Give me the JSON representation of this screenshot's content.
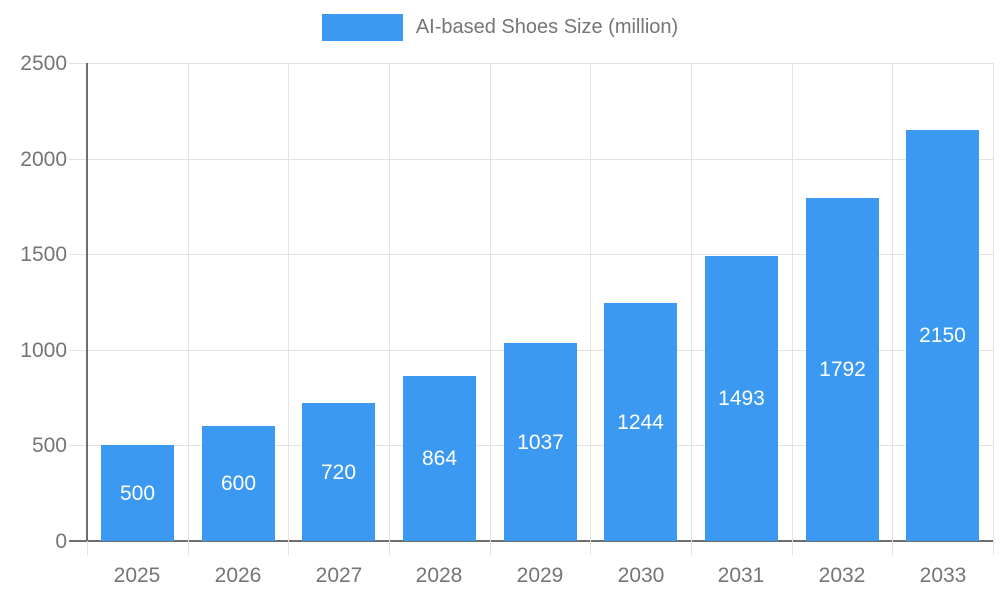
{
  "legend": {
    "label": "AI-based Shoes Size (million)"
  },
  "chart_data": {
    "type": "bar",
    "title": "AI-based Shoes Size (million)",
    "series_name": "AI-based Shoes Size (million)",
    "categories": [
      "2025",
      "2026",
      "2027",
      "2028",
      "2029",
      "2030",
      "2031",
      "2032",
      "2033"
    ],
    "values": [
      500,
      600,
      720,
      864,
      1037,
      1244,
      1493,
      1792,
      2150
    ],
    "value_labels": [
      "500",
      "600",
      "720",
      "864",
      "1037",
      "1244",
      "1493",
      "1792",
      "2150"
    ],
    "xlabel": "",
    "ylabel": "",
    "ylim": [
      0,
      2500
    ],
    "y_ticks": [
      0,
      500,
      1000,
      1500,
      2000,
      2500
    ],
    "y_tick_labels": [
      "0",
      "500",
      "1000",
      "1500",
      "2000",
      "2500"
    ],
    "grid": "on",
    "legend_position": "top-center"
  },
  "colors": {
    "bar": "#3b99f1",
    "grid": "#e3e3e3",
    "axis": "#6e6e6e",
    "tick_text": "#757575",
    "value_text": "#ffffff",
    "background": "#ffffff"
  }
}
